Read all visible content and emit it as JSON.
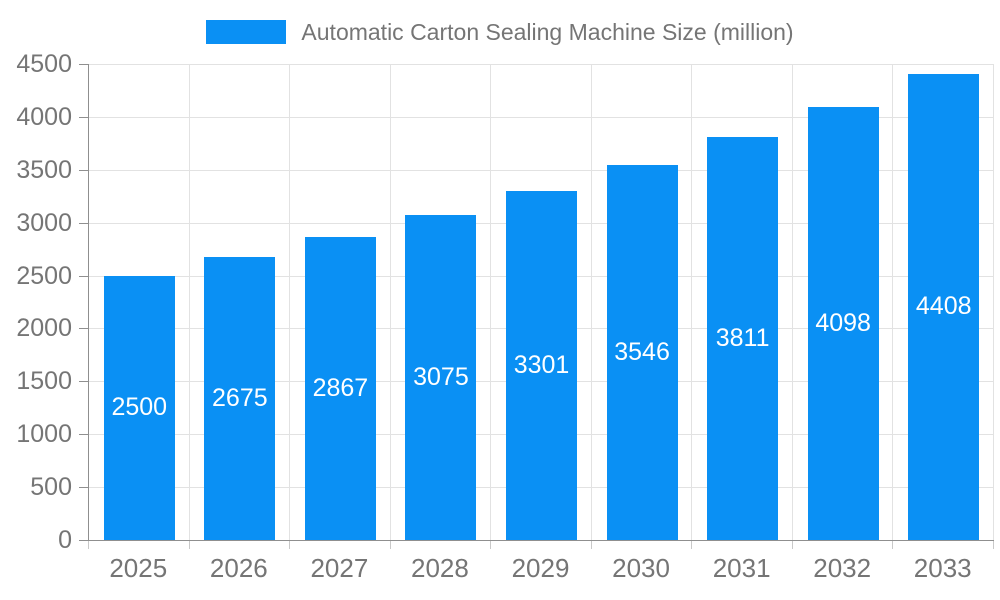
{
  "chart_data": {
    "type": "bar",
    "title": "Automatic Carton Sealing Machine Size (million)",
    "categories": [
      "2025",
      "2026",
      "2027",
      "2028",
      "2029",
      "2030",
      "2031",
      "2032",
      "2033"
    ],
    "values": [
      2500,
      2675,
      2867,
      3075,
      3301,
      3546,
      3811,
      4098,
      4408
    ],
    "series": [
      {
        "name": "Automatic Carton Sealing Machine Size (million)",
        "values": [
          2500,
          2675,
          2867,
          3075,
          3301,
          3546,
          3811,
          4098,
          4408
        ]
      }
    ],
    "xlabel": "",
    "ylabel": "",
    "ylim": [
      0,
      4500
    ],
    "ytick_step": 500,
    "y_tick_labels": [
      "0",
      "500",
      "1000",
      "1500",
      "2000",
      "2500",
      "3000",
      "3500",
      "4000",
      "4500"
    ],
    "grid": true,
    "legend_position": "top-center",
    "bar_value_labels_visible": true
  },
  "colors": {
    "bar": "#0a90f4",
    "bar_label_text": "#ffffff",
    "grid": "#e2e2e2",
    "axis": "#8f8f8f",
    "x_tick": "#c9c9c9",
    "tick_text": "#757575",
    "title_text": "#757575"
  }
}
